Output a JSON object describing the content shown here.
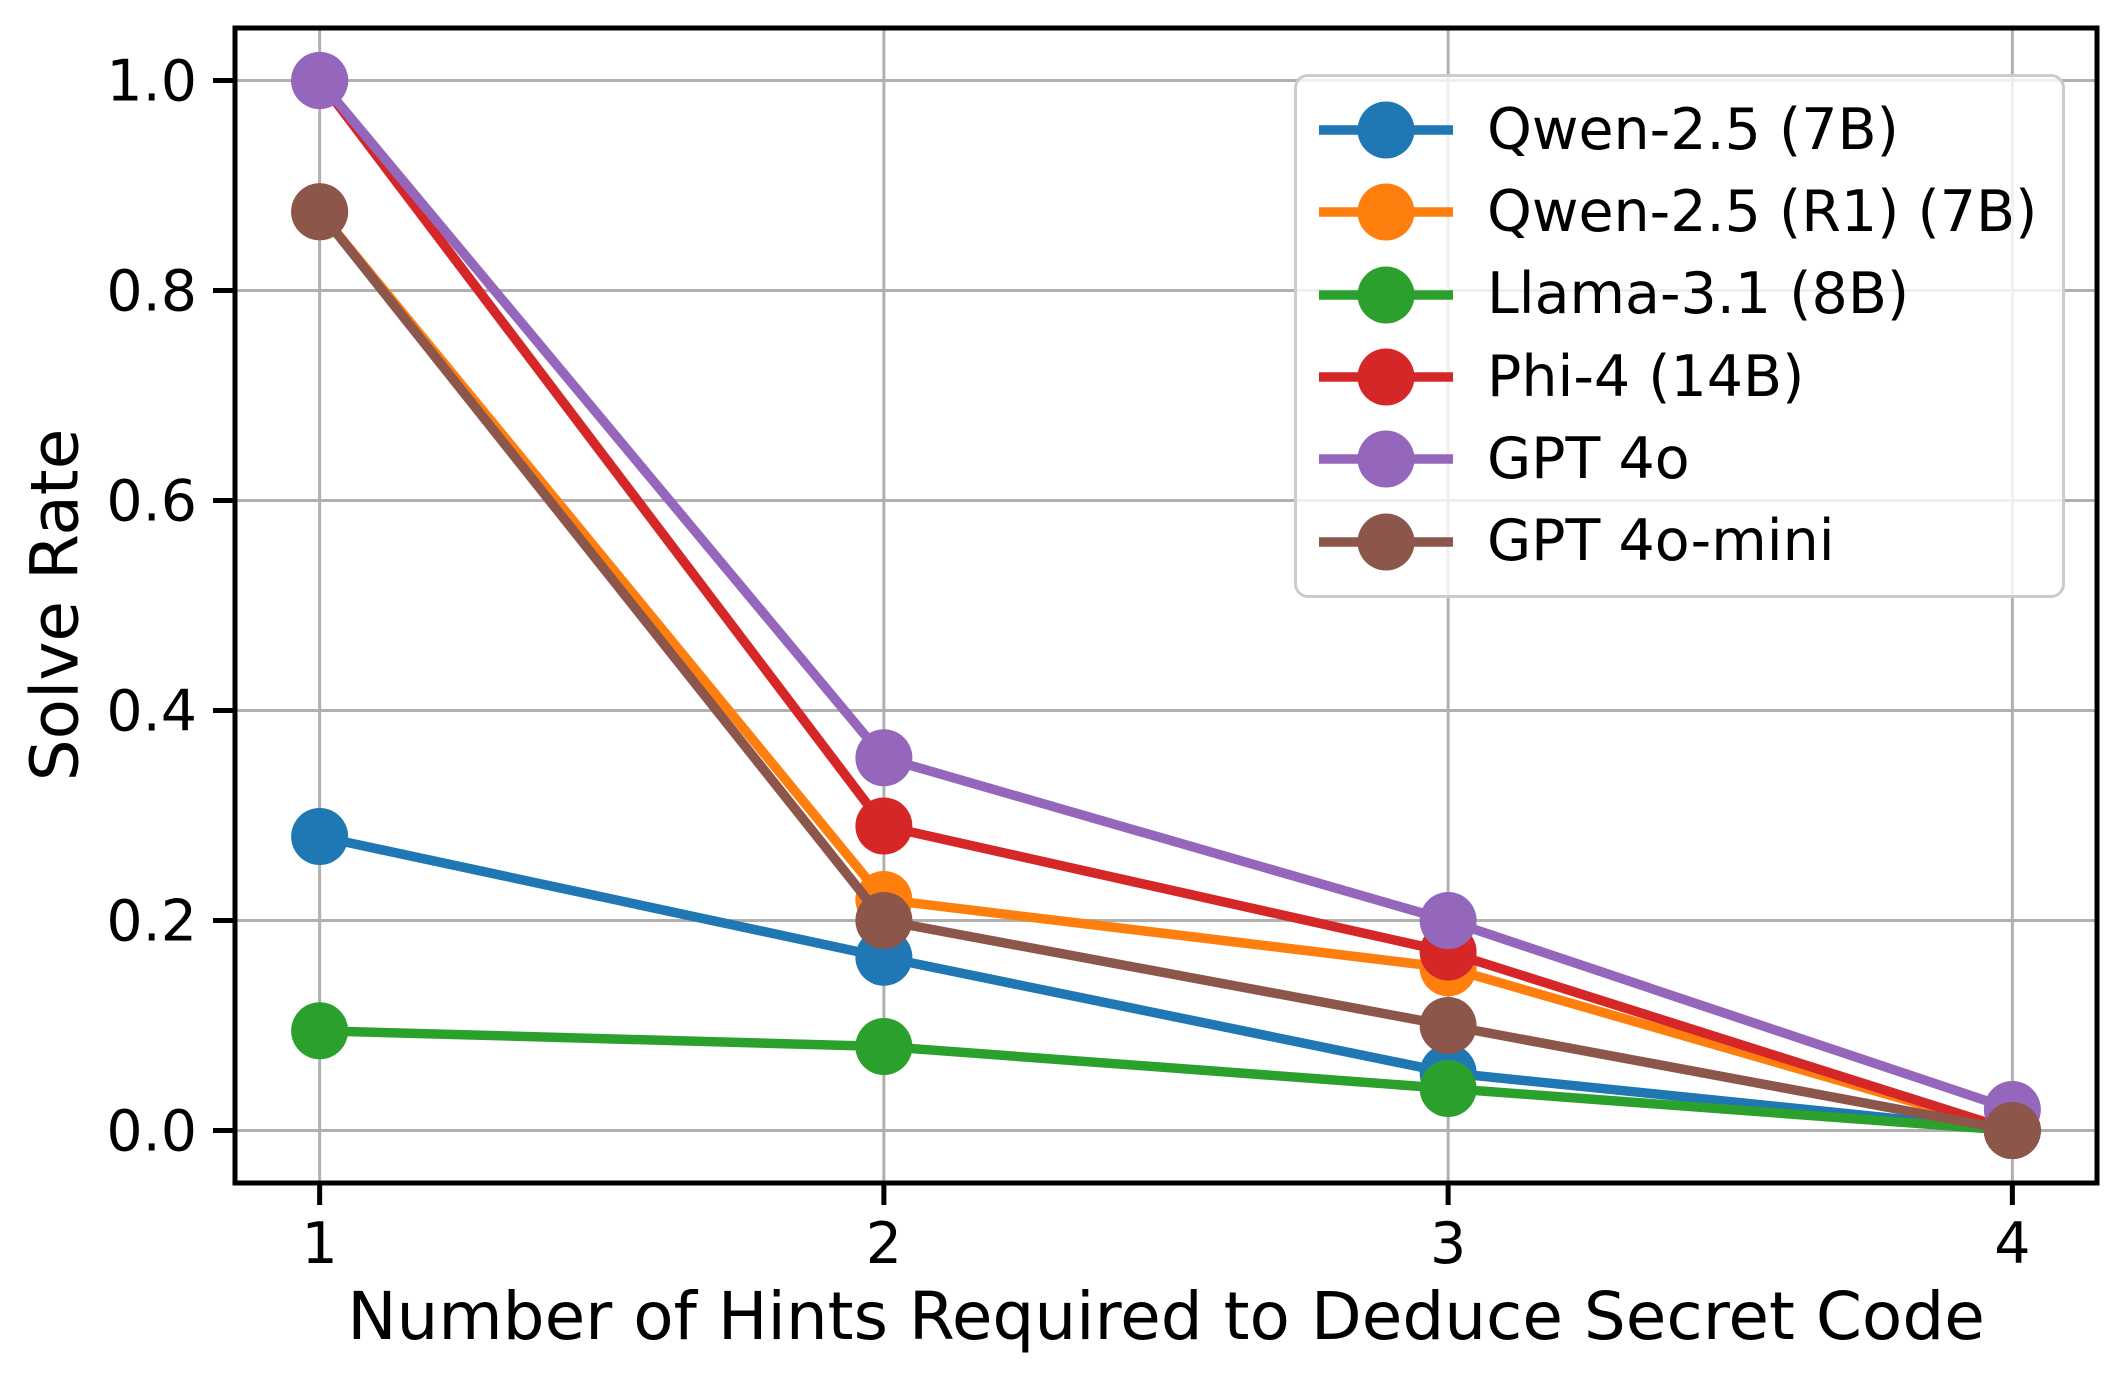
{
  "chart_data": {
    "type": "line",
    "x": [
      1,
      2,
      3,
      4
    ],
    "xtick_labels": [
      "1",
      "2",
      "3",
      "4"
    ],
    "yticks": [
      0.0,
      0.2,
      0.4,
      0.6,
      0.8,
      1.0
    ],
    "ytick_labels": [
      "0.0",
      "0.2",
      "0.4",
      "0.6",
      "0.8",
      "1.0"
    ],
    "xlabel": "Number of Hints Required to Deduce Secret Code",
    "ylabel": "Solve Rate",
    "xlim": [
      0.85,
      4.15
    ],
    "ylim": [
      -0.05,
      1.05
    ],
    "grid": true,
    "legend_position": "upper right",
    "series": [
      {
        "name": "Qwen-2.5 (7B)",
        "color": "#1f77b4",
        "values": [
          0.28,
          0.165,
          0.055,
          0.0
        ]
      },
      {
        "name": "Qwen-2.5 (R1) (7B)",
        "color": "#ff7f0e",
        "values": [
          0.875,
          0.22,
          0.155,
          0.0
        ]
      },
      {
        "name": "Llama-3.1 (8B)",
        "color": "#2ca02c",
        "values": [
          0.095,
          0.08,
          0.04,
          0.0
        ]
      },
      {
        "name": "Phi-4 (14B)",
        "color": "#d62728",
        "values": [
          1.0,
          0.29,
          0.17,
          0.0
        ]
      },
      {
        "name": "GPT 4o",
        "color": "#9467bd",
        "values": [
          1.0,
          0.355,
          0.2,
          0.02
        ]
      },
      {
        "name": "GPT 4o-mini",
        "color": "#8c564b",
        "values": [
          0.875,
          0.2,
          0.1,
          0.0
        ]
      }
    ]
  },
  "styles": {
    "background": "#ffffff",
    "grid_color": "#b0b0b0",
    "axis_color": "#000000",
    "tick_label_color": "#000000",
    "legend_border_color": "#cccccc"
  }
}
